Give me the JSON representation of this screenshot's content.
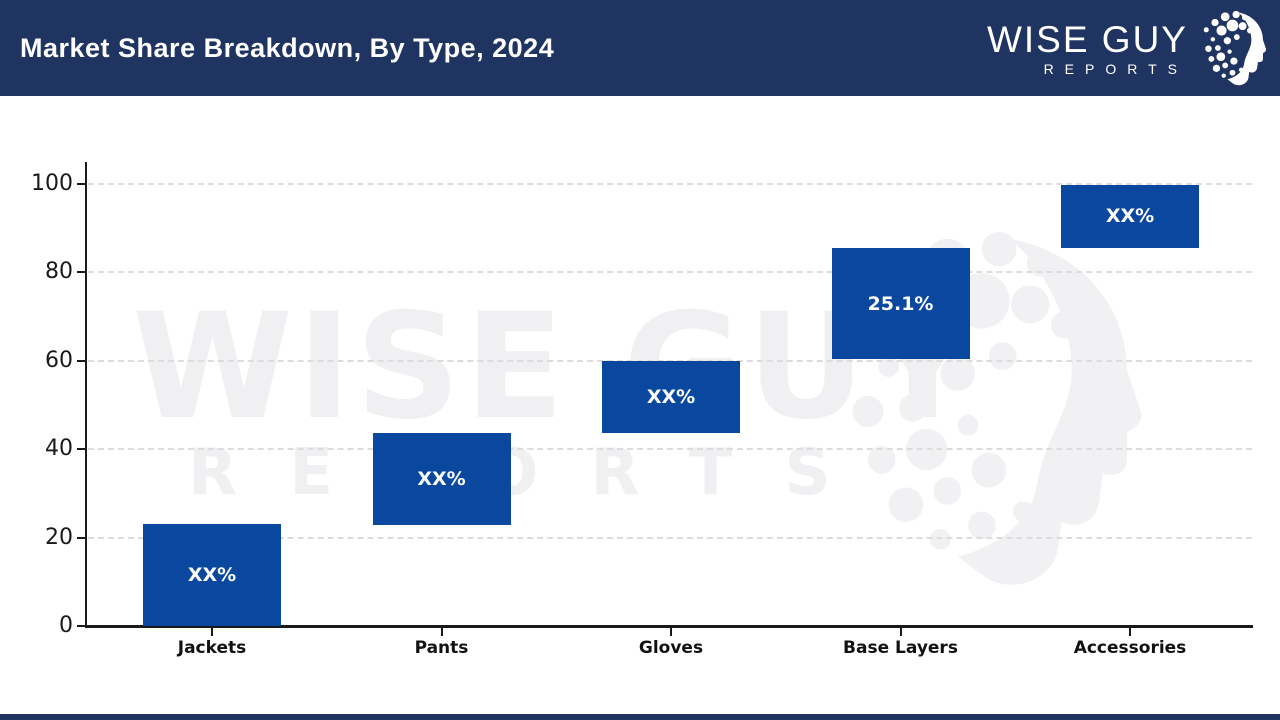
{
  "header": {
    "title": "Market Share Breakdown, By Type, 2024",
    "logo_line1": "WISE GUY",
    "logo_line2": "REPORTS"
  },
  "watermark": {
    "line1": "WISE GUY",
    "line2": "REPORTS"
  },
  "colors": {
    "header_bg": "#1F3461",
    "bar": "#09489E",
    "bar_label": "#FFFFFF",
    "gridline": "#DCDCDC",
    "axis": "#1A1A1A",
    "watermark": "#F0F0F3",
    "footer": "#1F3461"
  },
  "chart_data": {
    "type": "bar",
    "subtype": "waterfall-floating-bars",
    "title": "Market Share Breakdown, By Type, 2024",
    "categories": [
      "Jackets",
      "Pants",
      "Gloves",
      "Base Layers",
      "Accessories"
    ],
    "segments": [
      {
        "category": "Jackets",
        "start": 0,
        "end": 23.1,
        "label": "XX%"
      },
      {
        "category": "Pants",
        "start": 22.9,
        "end": 43.7,
        "label": "XX%"
      },
      {
        "category": "Gloves",
        "start": 43.7,
        "end": 60.0,
        "label": "XX%"
      },
      {
        "category": "Base Layers",
        "start": 60.4,
        "end": 85.5,
        "label": "25.1%"
      },
      {
        "category": "Accessories",
        "start": 85.5,
        "end": 99.8,
        "label": "XX%"
      }
    ],
    "ylabel": "",
    "xlabel": "",
    "ylim": [
      0,
      105
    ],
    "yticks": [
      0,
      20,
      40,
      60,
      80,
      100
    ],
    "grid": "horizontal-dashed",
    "legend": "none",
    "bar_value_labels_inside": true
  }
}
